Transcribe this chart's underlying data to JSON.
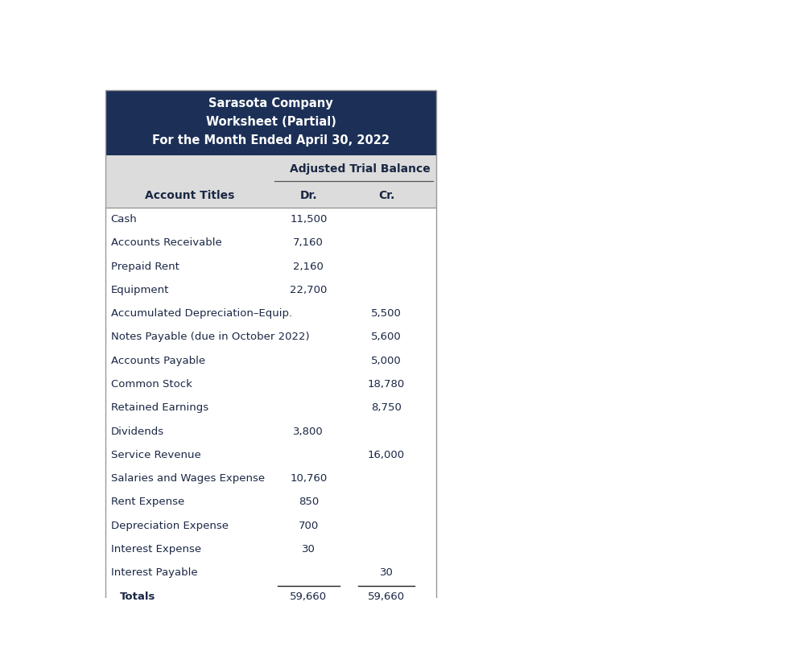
{
  "title_lines": [
    "Sarasota Company",
    "Worksheet (Partial)",
    "For the Month Ended April 30, 2022"
  ],
  "header_bg": "#1c3057",
  "header_text_color": "#ffffff",
  "subheader_bg": "#dcdcdc",
  "section_label": "Adjusted Trial Balance",
  "rows": [
    {
      "account": "Cash",
      "dr": "11,500",
      "cr": ""
    },
    {
      "account": "Accounts Receivable",
      "dr": "7,160",
      "cr": ""
    },
    {
      "account": "Prepaid Rent",
      "dr": "2,160",
      "cr": ""
    },
    {
      "account": "Equipment",
      "dr": "22,700",
      "cr": ""
    },
    {
      "account": "Accumulated Depreciation–Equip.",
      "dr": "",
      "cr": "5,500"
    },
    {
      "account": "Notes Payable (due in October 2022)",
      "dr": "",
      "cr": "5,600"
    },
    {
      "account": "Accounts Payable",
      "dr": "",
      "cr": "5,000"
    },
    {
      "account": "Common Stock",
      "dr": "",
      "cr": "18,780"
    },
    {
      "account": "Retained Earnings",
      "dr": "",
      "cr": "8,750"
    },
    {
      "account": "Dividends",
      "dr": "3,800",
      "cr": ""
    },
    {
      "account": "Service Revenue",
      "dr": "",
      "cr": "16,000"
    },
    {
      "account": "Salaries and Wages Expense",
      "dr": "10,760",
      "cr": ""
    },
    {
      "account": "Rent Expense",
      "dr": "850",
      "cr": ""
    },
    {
      "account": "Depreciation Expense",
      "dr": "700",
      "cr": ""
    },
    {
      "account": "Interest Expense",
      "dr": "30",
      "cr": ""
    },
    {
      "account": "Interest Payable",
      "dr": "",
      "cr": "30"
    }
  ],
  "totals_row": {
    "account": "Totals",
    "dr": "59,660",
    "cr": "59,660"
  },
  "row_text_color": "#1a2744",
  "figure_bg": "#ffffff"
}
